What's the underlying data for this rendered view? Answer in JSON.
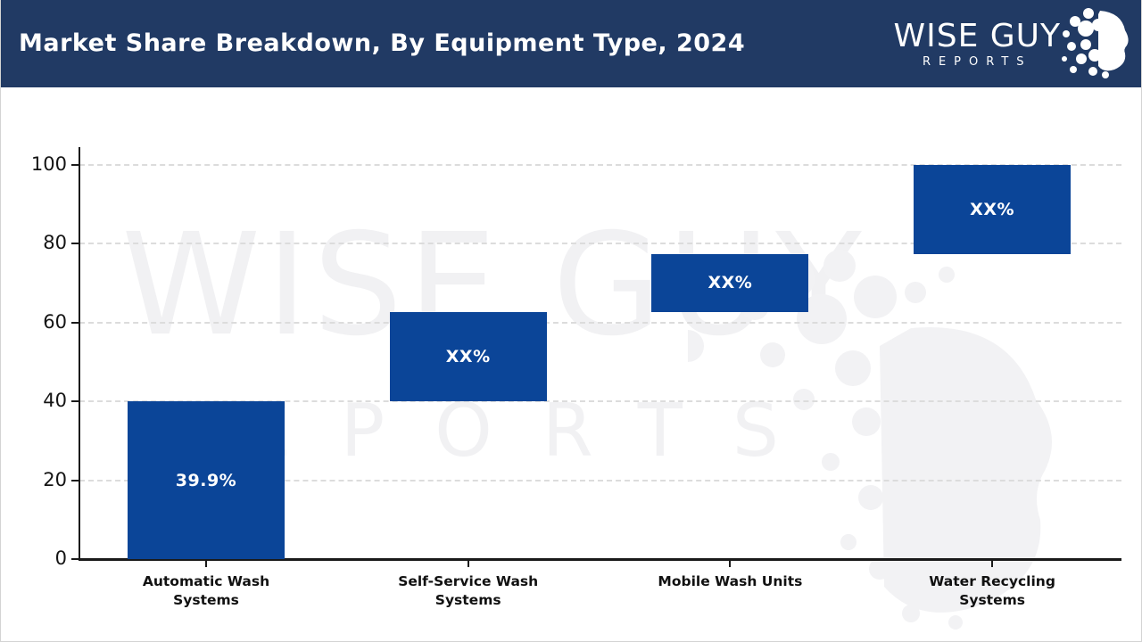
{
  "header": {
    "title": "Market Share Breakdown, By Equipment Type, 2024",
    "logo": {
      "line1": "WISE GUY",
      "line2": "REPORTS"
    }
  },
  "watermark": {
    "line1": "WISE GUY",
    "line2": "REPORTS"
  },
  "chart_data": {
    "type": "bar",
    "subtype": "waterfall",
    "title": "Market Share Breakdown, By Equipment Type, 2024",
    "categories": [
      "Automatic Wash\nSystems",
      "Self-Service Wash\nSystems",
      "Mobile Wash Units",
      "Water Recycling\nSystems"
    ],
    "segments": [
      {
        "from": 0,
        "to": 39.9,
        "label": "39.9%"
      },
      {
        "from": 39.9,
        "to": 62.7,
        "label": "XX%"
      },
      {
        "from": 62.7,
        "to": 77.4,
        "label": "XX%"
      },
      {
        "from": 77.4,
        "to": 100,
        "label": "XX%"
      }
    ],
    "xlabel": "",
    "ylabel": "",
    "ylim": [
      0,
      105
    ],
    "yticks": [
      0,
      20,
      40,
      60,
      80,
      100
    ],
    "grid": "horizontal-dashed",
    "legend": "none"
  },
  "colors": {
    "header_bg": "#213a64",
    "bar": "#0b4598",
    "value_label": "#ffffff",
    "grid": "#dcdcdc",
    "axis": "#1a1a1a",
    "watermark": "#f1f1f3"
  }
}
